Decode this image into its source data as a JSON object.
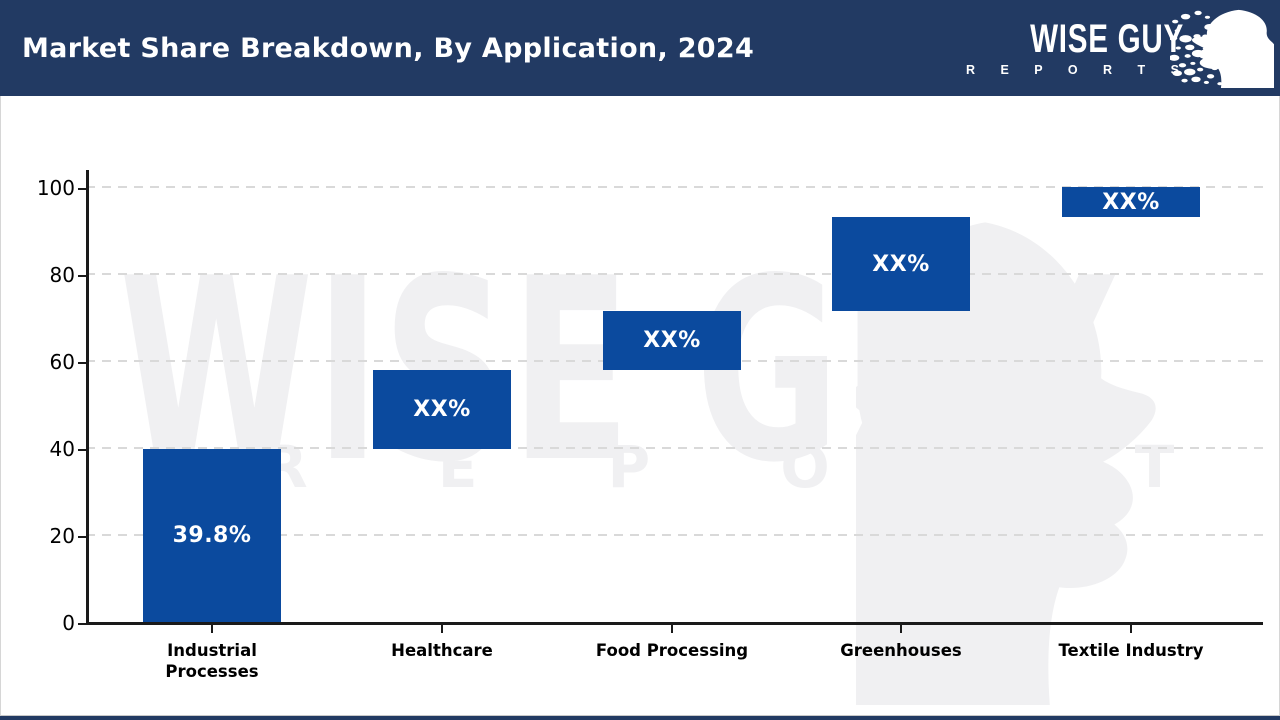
{
  "header": {
    "title": "Market Share Breakdown, By Application, 2024"
  },
  "logo": {
    "line1": "WISE GUY",
    "line2": "R E P O R T S"
  },
  "watermark": {
    "line1": "WISE GUY",
    "line2": "R E P O R T S"
  },
  "chart_data": {
    "type": "bar",
    "subtype": "waterfall",
    "title": "Market Share Breakdown, By Application, 2024",
    "categories": [
      "Industrial Processes",
      "Healthcare",
      "Food Processing",
      "Greenhouses",
      "Textile Industry"
    ],
    "segments": [
      {
        "category": "Industrial Processes",
        "start": 0,
        "end": 39.8,
        "label": "39.8%"
      },
      {
        "category": "Healthcare",
        "start": 39.8,
        "end": 58.0,
        "label": "XX%"
      },
      {
        "category": "Food Processing",
        "start": 58.0,
        "end": 71.5,
        "label": "XX%"
      },
      {
        "category": "Greenhouses",
        "start": 71.5,
        "end": 93.0,
        "label": "XX%"
      },
      {
        "category": "Textile Industry",
        "start": 93.0,
        "end": 100.0,
        "label": "XX%"
      }
    ],
    "yticks": [
      0,
      20,
      40,
      60,
      80,
      100
    ],
    "ylim": [
      0,
      104
    ],
    "xlabel": "",
    "ylabel": "",
    "legend": null,
    "grid": {
      "axis": "y",
      "style": "dashed",
      "color": "#d9d9d9"
    },
    "colors": {
      "bar": "#0b4a9e",
      "bar_label": "#ffffff",
      "axis": "#1a1a1a",
      "tick_label": "#000000",
      "header_bg": "#223a63",
      "watermark": "#f0f0f2"
    }
  }
}
